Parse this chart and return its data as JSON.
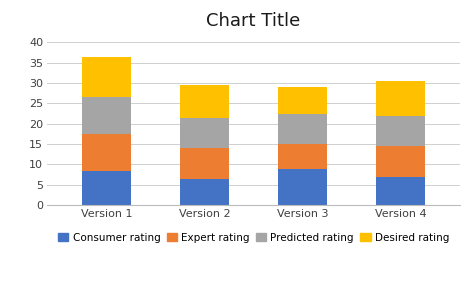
{
  "categories": [
    "Version 1",
    "Version 2",
    "Version 3",
    "Version 4"
  ],
  "series": {
    "Consumer rating": [
      8.5,
      6.5,
      9.0,
      7.0
    ],
    "Expert rating": [
      9.0,
      7.5,
      6.0,
      7.5
    ],
    "Predicted rating": [
      9.0,
      7.5,
      7.5,
      7.5
    ],
    "Desired rating": [
      10.0,
      8.0,
      6.5,
      8.5
    ]
  },
  "colors": {
    "Consumer rating": "#4472C4",
    "Expert rating": "#ED7D31",
    "Predicted rating": "#A5A5A5",
    "Desired rating": "#FFC000"
  },
  "title": "Chart Title",
  "ylim": [
    0,
    42
  ],
  "yticks": [
    0,
    5,
    10,
    15,
    20,
    25,
    30,
    35,
    40
  ],
  "title_fontsize": 13,
  "legend_fontsize": 7.5,
  "tick_fontsize": 8,
  "background_color": "#FFFFFF",
  "grid_color": "#D0D0D0",
  "bar_width": 0.5
}
